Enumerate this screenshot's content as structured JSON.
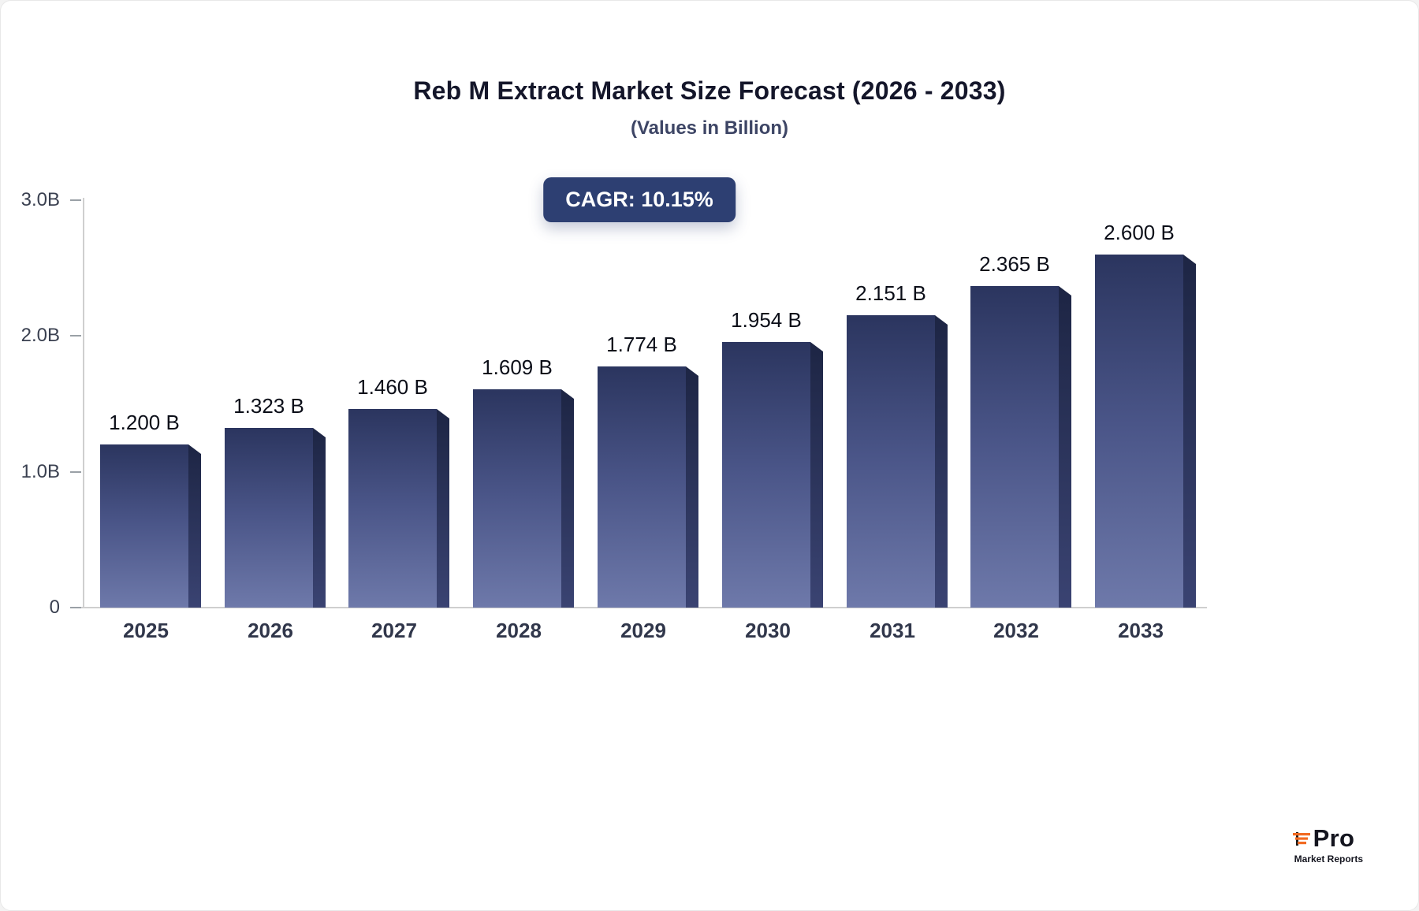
{
  "header": {
    "title": "Reb M Extract Market Size Forecast (2026 - 2033)",
    "subtitle": "(Values in Billion)"
  },
  "badge": {
    "label": "CAGR: 10.15%"
  },
  "chart_data": {
    "type": "bar",
    "title": "Reb M Extract Market Size Forecast (2026 - 2033)",
    "subtitle": "(Values in Billion)",
    "cagr": "10.15%",
    "categories": [
      "2025",
      "2026",
      "2027",
      "2028",
      "2029",
      "2030",
      "2031",
      "2032",
      "2033"
    ],
    "values": [
      1.2,
      1.323,
      1.46,
      1.609,
      1.774,
      1.954,
      2.151,
      2.365,
      2.6
    ],
    "value_labels": [
      "1.200 B",
      "1.323 B",
      "1.460 B",
      "1.609 B",
      "1.774 B",
      "1.954 B",
      "2.151 B",
      "2.365 B",
      "2.600 B"
    ],
    "xlabel": "",
    "ylabel": "",
    "ylim": [
      0,
      3.0
    ],
    "yticks": [
      {
        "label": "3.0B",
        "value": 3.0
      },
      {
        "label": "2.0B",
        "value": 2.0
      },
      {
        "label": "1.0B",
        "value": 1.0
      },
      {
        "label": "0",
        "value": 0
      }
    ],
    "grid": false,
    "legend": false,
    "colors": {
      "bar_face_top": "#2b355f",
      "bar_face_bottom": "#6e79aa",
      "bar_side": "#1d2544",
      "badge_bg": "#2d3f72",
      "axis_line": "#cfcfcf"
    }
  },
  "logo": {
    "name": "Pro",
    "tagline": "Market Reports",
    "icon_color": "#f26a21"
  }
}
